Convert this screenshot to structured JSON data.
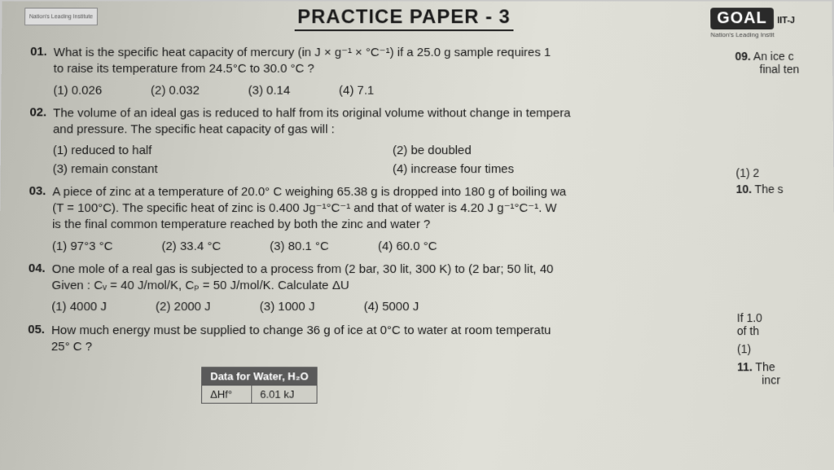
{
  "header": {
    "small_logo_text": "Nation's Leading Institute",
    "title": "PRACTICE PAPER - 3",
    "goal_label": "GOAL",
    "goal_side": "IIT-J",
    "goal_sub": "Nation's Leading Instit"
  },
  "right_cut": {
    "q09_num": "09.",
    "q09_l1": "An ice c",
    "q09_l2": "final ten",
    "q10_num": "10.",
    "q10_l1": "The s",
    "frag1": "(1)  2",
    "frag_if": "If 1.0",
    "frag_of": "of th",
    "frag_opt1": "(1)",
    "q11_num": "11.",
    "q11_l1": "The",
    "q11_l2": "incr"
  },
  "questions": [
    {
      "num": "01.",
      "text_l1": "What is the specific heat capacity of mercury (in J × g⁻¹ × °C⁻¹) if a 25.0 g sample requires 1",
      "text_l2": "to raise its temperature from 24.5°C to 30.0 °C ?",
      "opts": [
        "(1)  0.026",
        "(2)  0.032",
        "(3)  0.14",
        "(4)  7.1"
      ],
      "layout": "row"
    },
    {
      "num": "02.",
      "text_l1": "The volume of an ideal gas is reduced to half from its original volume without change in tempera",
      "text_l2": "and pressure. The specific heat capacity of gas will :",
      "opts": [
        "(1)  reduced to half",
        "(2)  be doubled",
        "(3)  remain constant",
        "(4)  increase four times"
      ],
      "layout": "two-col"
    },
    {
      "num": "03.",
      "text_l1": "A piece of zinc at a temperature of 20.0° C weighing 65.38 g is dropped into 180 g of boiling wa",
      "text_l2": "(T = 100°C). The specific heat of zinc is 0.400 Jg⁻¹°C⁻¹ and that of water is 4.20 J g⁻¹°C⁻¹. W",
      "text_l3": "is the final common temperature reached by both the zinc and water ?",
      "opts": [
        "(1)  97°3 °C",
        "(2)  33.4 °C",
        "(3)  80.1 °C",
        "(4)  60.0 °C"
      ],
      "layout": "row"
    },
    {
      "num": "04.",
      "text_l1": "One mole of a real gas is subjected to a process from (2 bar, 30 lit, 300 K) to (2 bar; 50 lit, 40",
      "text_l2": "Given : Cᵥ = 40 J/mol/K, Cₚ = 50 J/mol/K. Calculate ΔU",
      "opts": [
        "(1)  4000 J",
        "(2)  2000 J",
        "(3)  1000 J",
        "(4)  5000 J"
      ],
      "layout": "row"
    },
    {
      "num": "05.",
      "text_l1": "How much energy must be supplied to change 36 g of ice at 0°C to water at room temperatu",
      "text_l2": "25° C ?",
      "opts": [],
      "layout": "row"
    }
  ],
  "table": {
    "header": "Data for Water, H₂O",
    "row1_c1": "ΔHf°",
    "row1_c2": "6.01 kJ"
  }
}
